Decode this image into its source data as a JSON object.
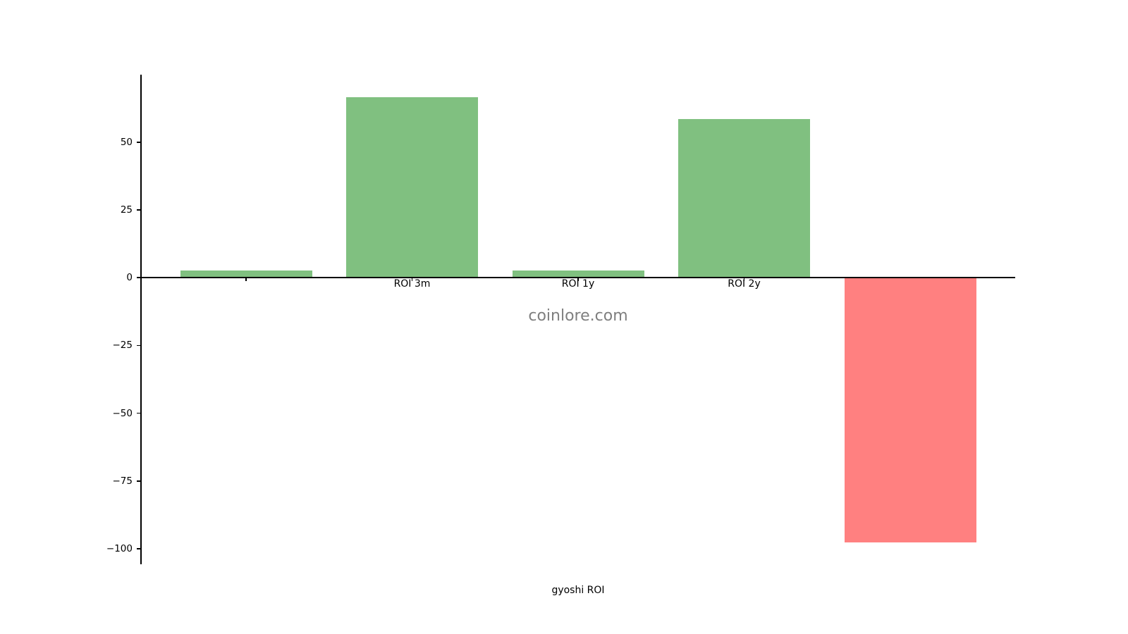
{
  "page": {
    "background": "#ffffff"
  },
  "chart_data": {
    "type": "bar",
    "title": "",
    "xlabel": "gyoshi ROI",
    "ylabel": "",
    "watermark": "coinlore.com",
    "categories": [
      "",
      "ROI 3m",
      "ROI 1y",
      "ROI 2y",
      ""
    ],
    "values": [
      2.6,
      66.7,
      2.6,
      58.6,
      -97.7
    ],
    "bar_colors": [
      "#80c080",
      "#80c080",
      "#80c080",
      "#80c080",
      "#ff8080"
    ],
    "positive_color": "#80c080",
    "negative_color": "#ff8080",
    "y_ticks": [
      50,
      25,
      0,
      -25,
      -50,
      -75,
      -100
    ],
    "ylim": [
      -105.7,
      74.9
    ],
    "grid": false,
    "legend": "none",
    "axis_color": "#000000",
    "watermark_color": "#7f7f7f"
  }
}
